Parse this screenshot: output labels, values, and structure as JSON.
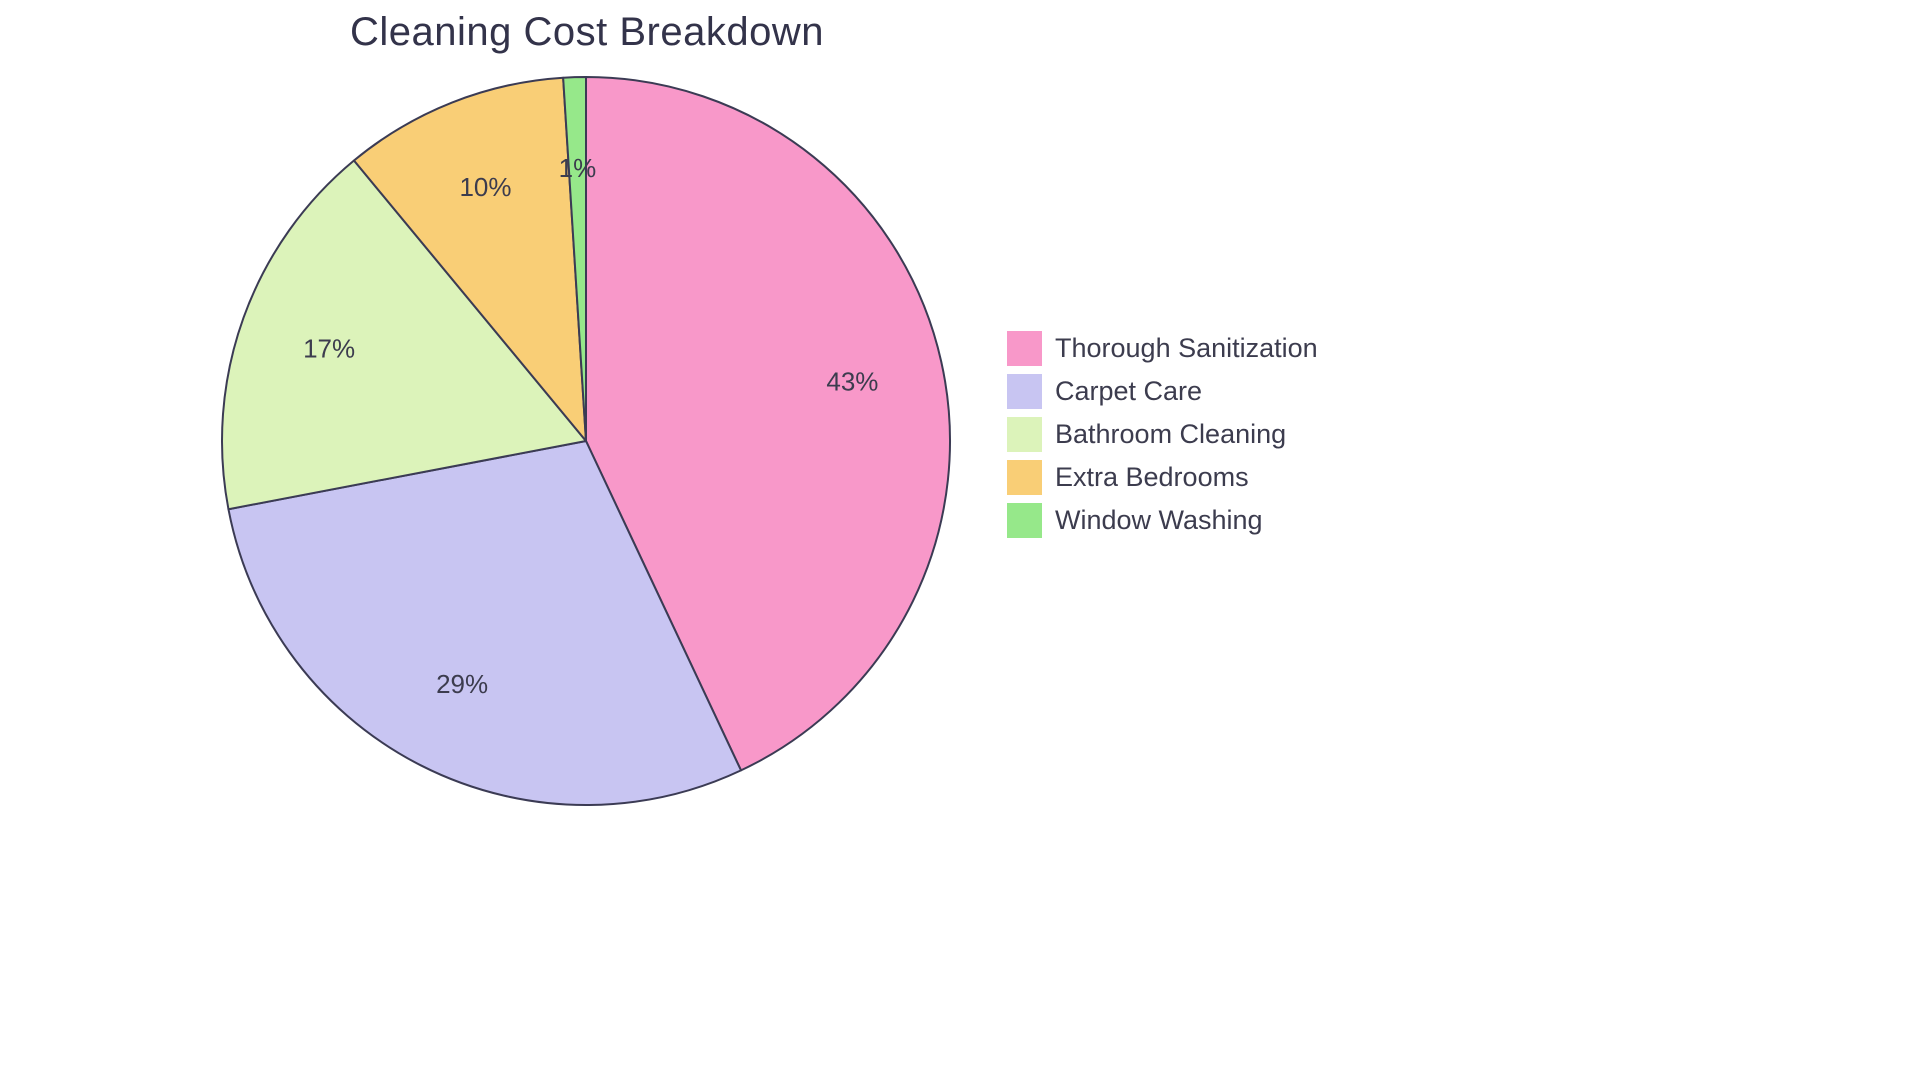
{
  "title": "Cleaning Cost Breakdown",
  "chart_data": {
    "type": "pie",
    "title": "Cleaning Cost Breakdown",
    "labels": [
      "Thorough Sanitization",
      "Carpet Care",
      "Bathroom Cleaning",
      "Extra Bedrooms",
      "Window Washing"
    ],
    "values": [
      43,
      29,
      17,
      10,
      1
    ],
    "percent_labels": [
      "43%",
      "29%",
      "17%",
      "10%",
      "1%"
    ],
    "colors": [
      "#F898C9",
      "#C8C5F2",
      "#DCF3BA",
      "#F9CE76",
      "#96E88A"
    ],
    "slice_border_color": "#3B3B54",
    "text_color": "#3C3C4E",
    "start_angle_deg": -90,
    "direction": "clockwise",
    "legend_position": "right",
    "grid": false
  }
}
